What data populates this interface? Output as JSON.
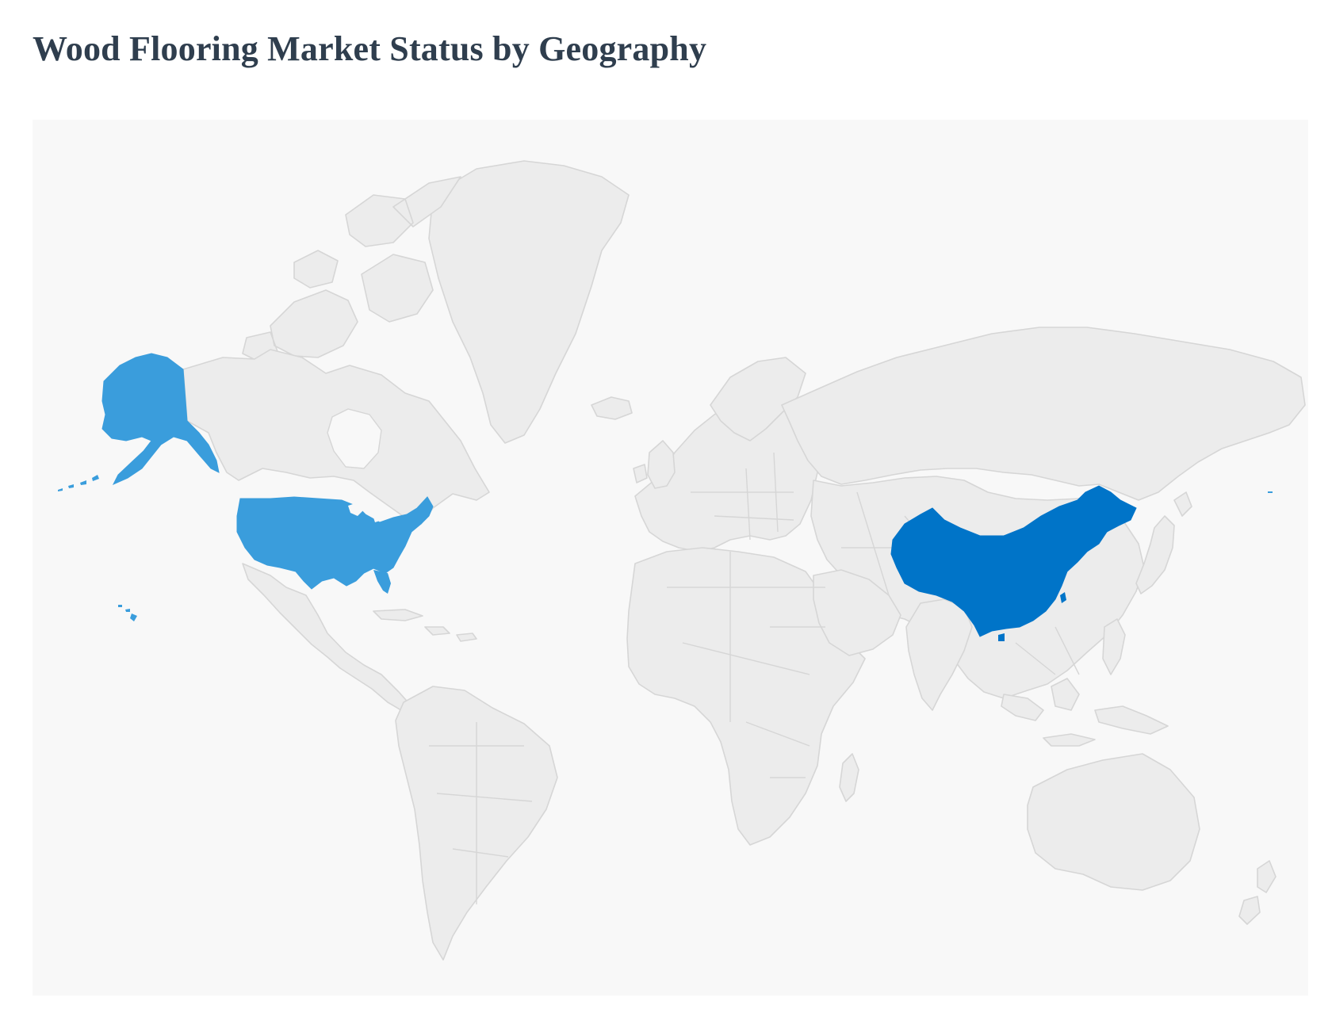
{
  "title": "Wood Flooring Market Status by Geography",
  "map": {
    "highlighted_regions": [
      {
        "name": "United States",
        "color": "#3a9ddc"
      },
      {
        "name": "China",
        "color": "#0074c8"
      }
    ],
    "base_land_color": "#ececec",
    "border_color": "#d6d6d6",
    "background_color": "#f8f8f8"
  }
}
